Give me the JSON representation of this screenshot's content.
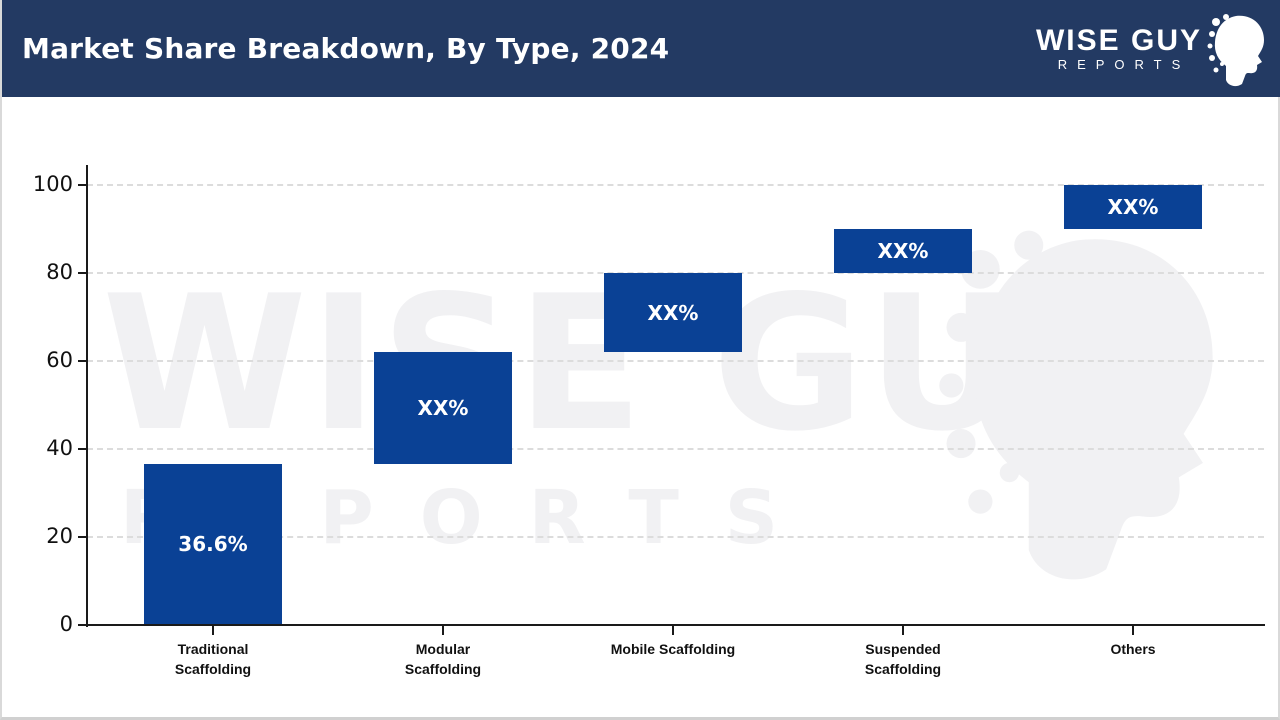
{
  "header": {
    "title": "Market Share Breakdown, By Type, 2024",
    "bg_color": "#233a63",
    "logo": {
      "line1": "WISE GUY",
      "line2": "REPORTS"
    }
  },
  "watermark": {
    "line1": "WISE GUY",
    "line2": "REPORTS"
  },
  "chart_data": {
    "type": "bar",
    "subtype": "waterfall",
    "title": "Market Share Breakdown, By Type, 2024",
    "xlabel": "",
    "ylabel": "",
    "categories": [
      "Traditional\nScaffolding",
      "Modular\nScaffolding",
      "Mobile Scaffolding",
      "Suspended\nScaffolding",
      "Others"
    ],
    "segments": [
      {
        "category": "Traditional Scaffolding",
        "start": 0,
        "end": 36.6,
        "label": "36.6%"
      },
      {
        "category": "Modular Scaffolding",
        "start": 36.6,
        "end": 62,
        "label": "XX%"
      },
      {
        "category": "Mobile Scaffolding",
        "start": 62,
        "end": 80,
        "label": "XX%"
      },
      {
        "category": "Suspended Scaffolding",
        "start": 80,
        "end": 90,
        "label": "XX%"
      },
      {
        "category": "Others",
        "start": 90,
        "end": 100,
        "label": "XX%"
      }
    ],
    "yticks": [
      0,
      20,
      40,
      60,
      80,
      100
    ],
    "ylim": [
      0,
      104.5
    ],
    "grid": "horizontal-dashed",
    "legend": "none",
    "bar_color": "#0a4195",
    "bar_label_color": "#ffffff",
    "grid_color": "#dcdcdc",
    "axis_color": "#1a1a1a"
  }
}
